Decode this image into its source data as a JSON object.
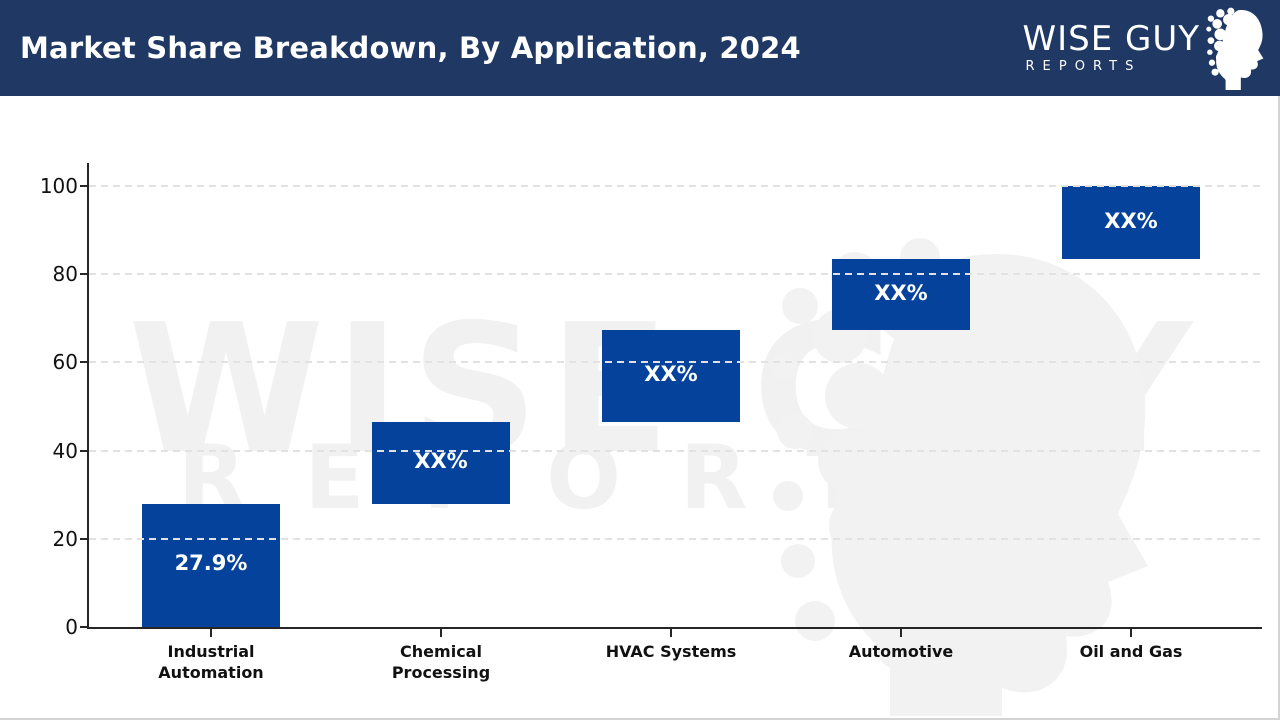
{
  "header": {
    "title": "Market Share Breakdown, By Application, 2024",
    "logo_line1": "WISE GUY",
    "logo_line2": "REPORTS"
  },
  "watermark": {
    "line1": "WISE GUY",
    "line2": "R E P O R T S"
  },
  "chart_data": {
    "type": "bar",
    "variant": "waterfall",
    "title": "Market Share Breakdown, By Application, 2024",
    "categories": [
      "Industrial Automation",
      "Chemical Processing",
      "HVAC Systems",
      "Automotive",
      "Oil and Gas"
    ],
    "category_lines": [
      [
        "Industrial",
        "Automation"
      ],
      [
        "Chemical",
        "Processing"
      ],
      [
        "HVAC Systems"
      ],
      [
        "Automotive"
      ],
      [
        "Oil and Gas"
      ]
    ],
    "segments": [
      {
        "category": "Industrial Automation",
        "start": 0,
        "end": 27.9,
        "label": "27.9%"
      },
      {
        "category": "Chemical Processing",
        "start": 27.9,
        "end": 46.4,
        "label": "XX%"
      },
      {
        "category": "HVAC Systems",
        "start": 46.4,
        "end": 67.3,
        "label": "XX%"
      },
      {
        "category": "Automotive",
        "start": 67.3,
        "end": 83.4,
        "label": "XX%"
      },
      {
        "category": "Oil and Gas",
        "start": 83.4,
        "end": 100,
        "label": "XX%"
      }
    ],
    "ylim": [
      0,
      100
    ],
    "yticks": [
      0,
      20,
      40,
      60,
      80,
      100
    ],
    "xlabel": "",
    "ylabel": "",
    "grid": "horizontal-dashed",
    "legend": "none",
    "colors": {
      "bar": "#05429b",
      "bar_label": "#ffffff",
      "header_bg": "#1f3864",
      "grid": "#e2e2e2",
      "axis": "#262626",
      "watermark": "#f1f1f2"
    }
  }
}
